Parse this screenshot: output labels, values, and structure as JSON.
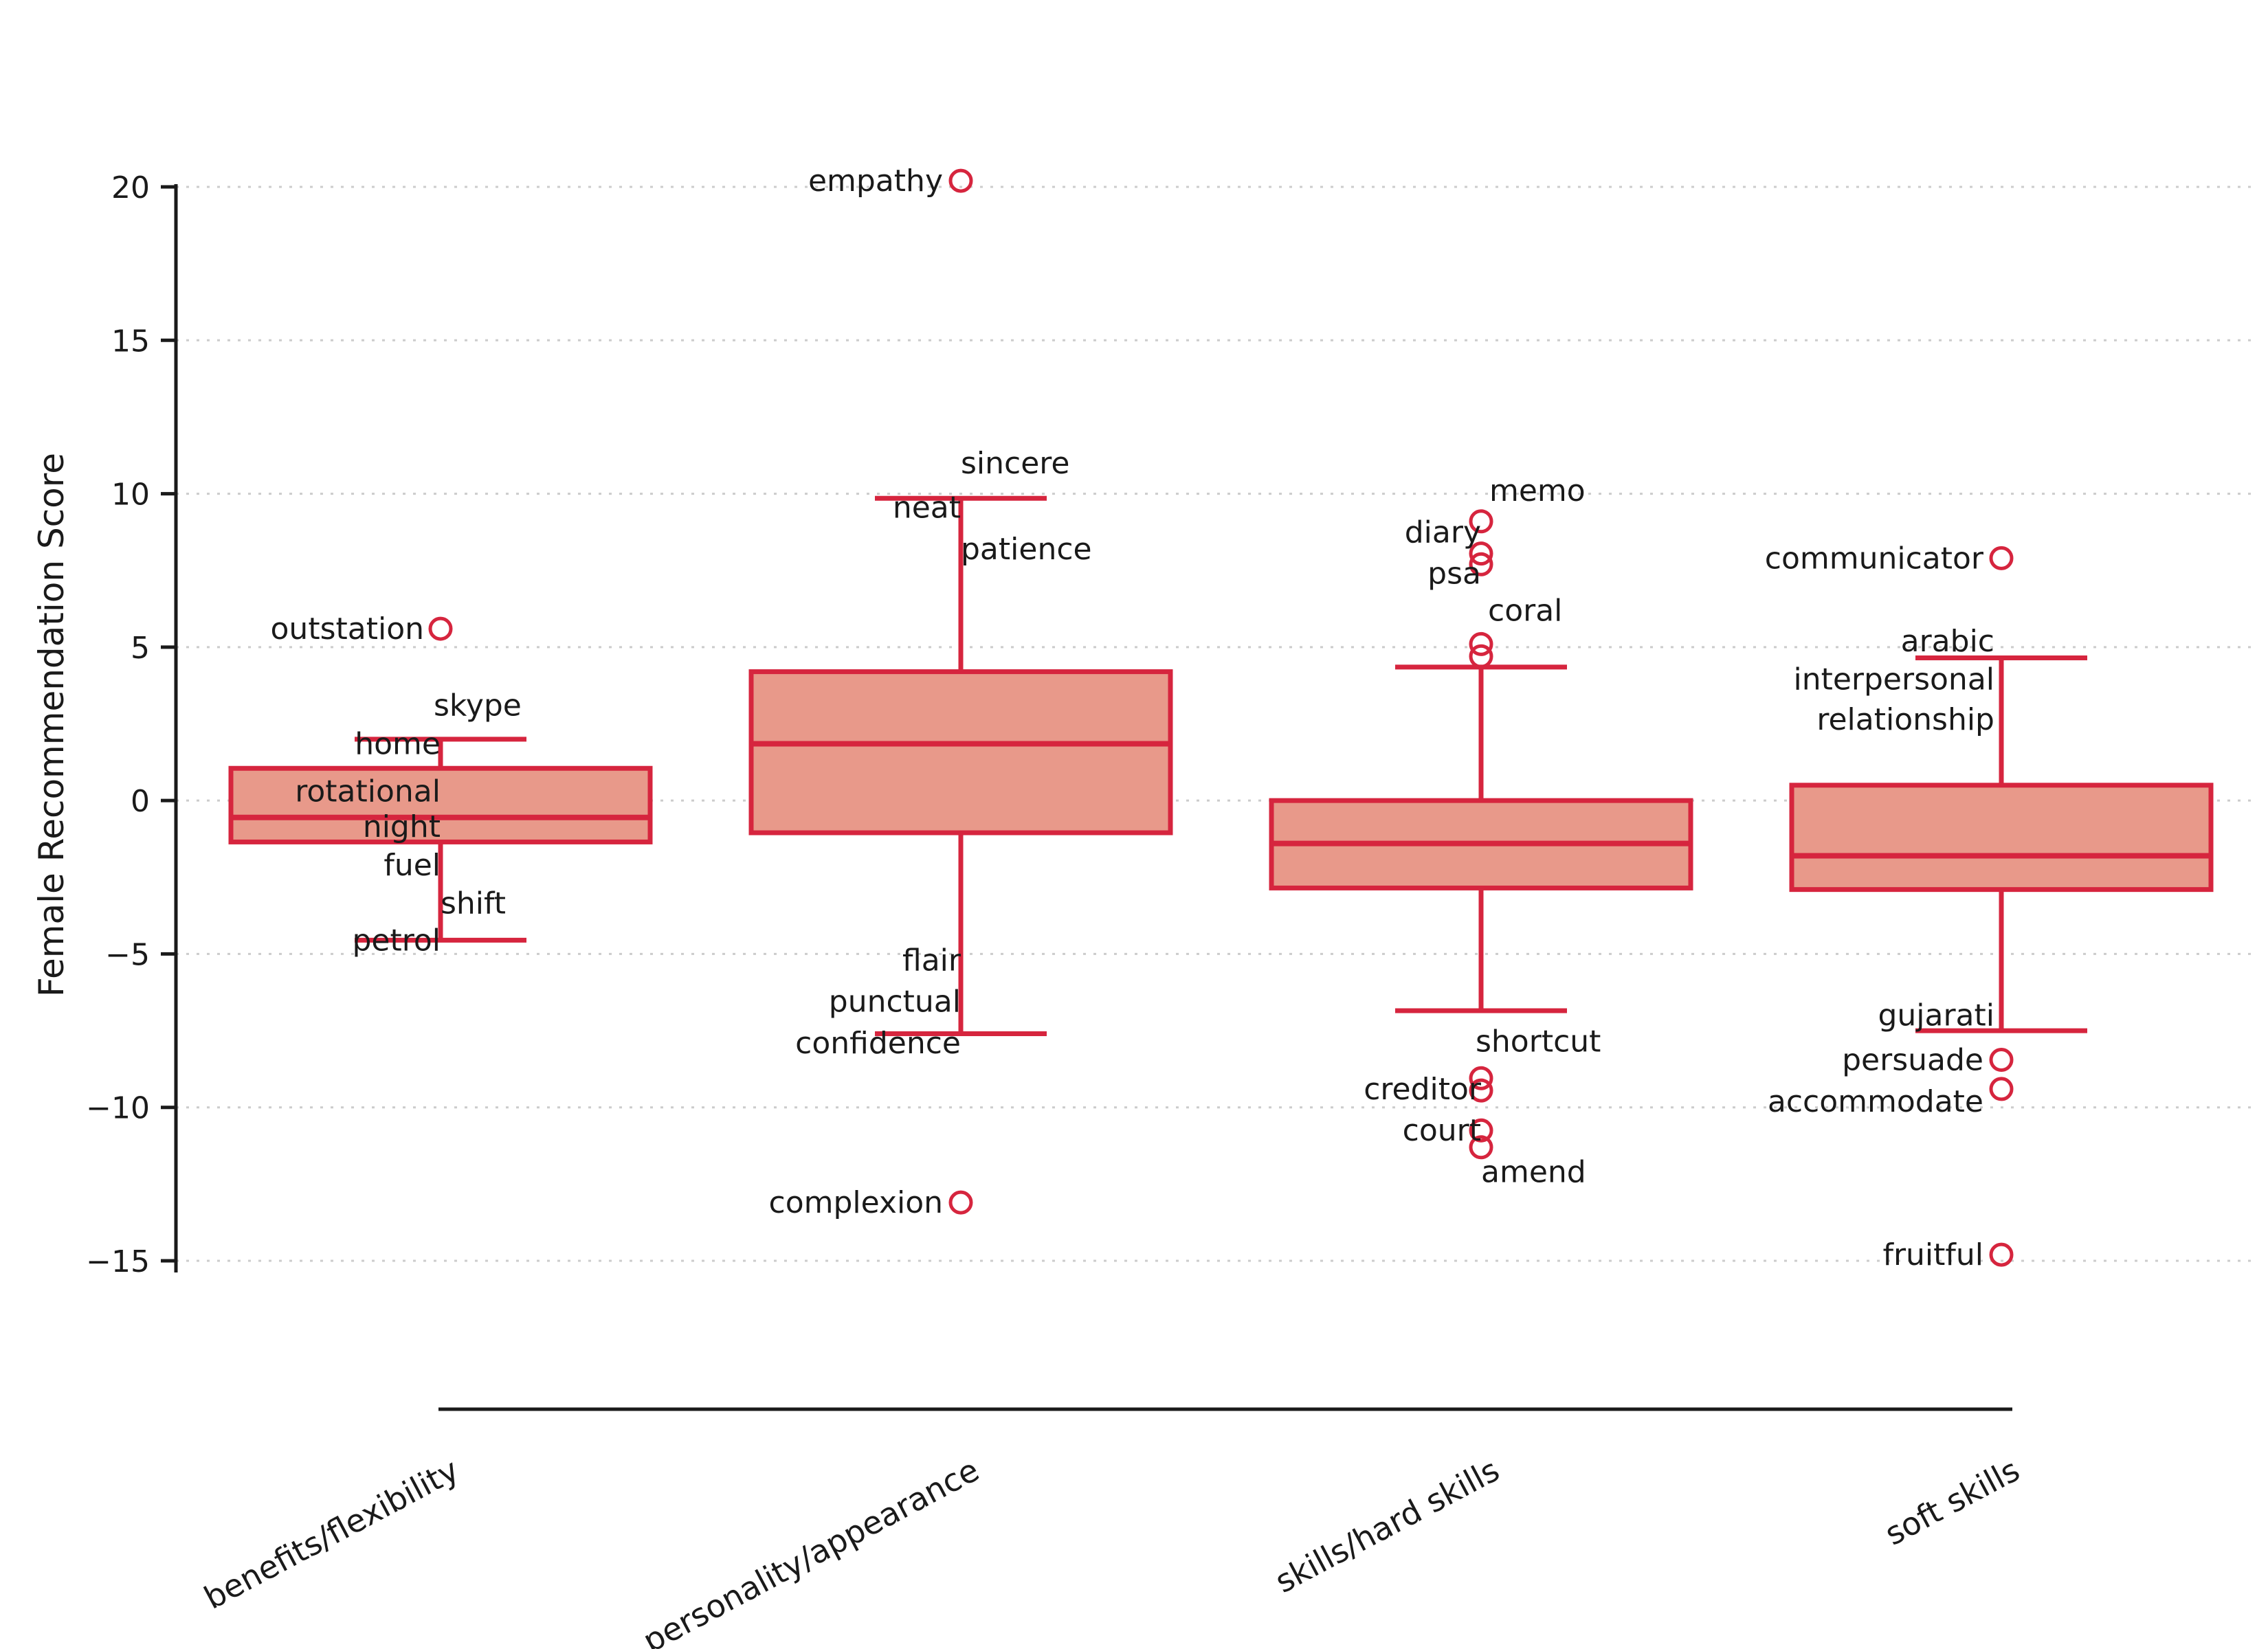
{
  "figure": {
    "background": "#ffffff"
  },
  "chart_data": {
    "type": "box",
    "title": "",
    "xlabel": "",
    "ylabel": "Female Recommendation Score",
    "ylim": [
      -17.5,
      21.5
    ],
    "yticks": [
      20,
      15,
      10,
      5,
      0,
      -5,
      -10,
      -15
    ],
    "grid": "horizontal-dotted",
    "legend": "none",
    "categories": [
      "benefits/flexibility",
      "personality/appearance",
      "skills/hard skills",
      "soft skills"
    ],
    "boxes": [
      {
        "category": "benefits/flexibility",
        "whislo": -4.55,
        "q1": -1.35,
        "med": -0.55,
        "q3": 1.05,
        "whishi": 2.0,
        "outliers": [
          5.6
        ]
      },
      {
        "category": "personality/appearance",
        "whislo": -7.6,
        "q1": -1.05,
        "med": 1.85,
        "q3": 4.2,
        "whishi": 9.85,
        "outliers": [
          20.2,
          -13.1
        ]
      },
      {
        "category": "skills/hard skills",
        "whislo": -6.85,
        "q1": -2.85,
        "med": -1.4,
        "q3": 0.0,
        "whishi": 4.35,
        "outliers": [
          9.1,
          8.05,
          7.7,
          5.1,
          4.7,
          -9.05,
          -9.45,
          -10.75,
          -11.3
        ]
      },
      {
        "category": "soft skills",
        "whislo": -7.5,
        "q1": -2.9,
        "med": -1.8,
        "q3": 0.5,
        "whishi": 4.65,
        "outliers": [
          7.9,
          -8.45,
          -9.4,
          -14.8
        ]
      }
    ],
    "annotations": [
      {
        "cat": 0,
        "label": "outstation",
        "value": 5.6,
        "anchor": "end",
        "dx": -24
      },
      {
        "cat": 0,
        "label": "skype",
        "value": 3.1,
        "anchor": "start",
        "dx": -10
      },
      {
        "cat": 0,
        "label": "home",
        "value": 1.85,
        "anchor": "end",
        "dx": 0
      },
      {
        "cat": 0,
        "label": "rotational",
        "value": 0.3,
        "anchor": "end",
        "dx": 0
      },
      {
        "cat": 0,
        "label": "night",
        "value": -0.85,
        "anchor": "end",
        "dx": 0
      },
      {
        "cat": 0,
        "label": "fuel",
        "value": -2.1,
        "anchor": "end",
        "dx": 0
      },
      {
        "cat": 0,
        "label": "shift",
        "value": -3.35,
        "anchor": "start",
        "dx": 0
      },
      {
        "cat": 0,
        "label": "petrol",
        "value": -4.55,
        "anchor": "end",
        "dx": 0
      },
      {
        "cat": 1,
        "label": "empathy",
        "value": 20.2,
        "anchor": "end",
        "dx": -26
      },
      {
        "cat": 1,
        "label": "sincere",
        "value": 11.0,
        "anchor": "start",
        "dx": 0
      },
      {
        "cat": 1,
        "label": "neat",
        "value": 9.55,
        "anchor": "end",
        "dx": 0
      },
      {
        "cat": 1,
        "label": "patience",
        "value": 8.2,
        "anchor": "start",
        "dx": 0
      },
      {
        "cat": 1,
        "label": "flair",
        "value": -5.2,
        "anchor": "end",
        "dx": 0
      },
      {
        "cat": 1,
        "label": "punctual",
        "value": -6.55,
        "anchor": "end",
        "dx": 0
      },
      {
        "cat": 1,
        "label": "confidence",
        "value": -7.9,
        "anchor": "end",
        "dx": 0
      },
      {
        "cat": 1,
        "label": "complexion",
        "value": -13.1,
        "anchor": "end",
        "dx": -26
      },
      {
        "cat": 2,
        "label": "memo",
        "value": 10.1,
        "anchor": "start",
        "dx": 12
      },
      {
        "cat": 2,
        "label": "diary",
        "value": 8.75,
        "anchor": "end",
        "dx": 0
      },
      {
        "cat": 2,
        "label": "psa",
        "value": 7.4,
        "anchor": "end",
        "dx": 0
      },
      {
        "cat": 2,
        "label": "coral",
        "value": 6.2,
        "anchor": "start",
        "dx": 10
      },
      {
        "cat": 2,
        "label": "shortcut",
        "value": -7.85,
        "anchor": "start",
        "dx": -8
      },
      {
        "cat": 2,
        "label": "creditor",
        "value": -9.4,
        "anchor": "end",
        "dx": 0
      },
      {
        "cat": 2,
        "label": "court",
        "value": -10.75,
        "anchor": "end",
        "dx": 0
      },
      {
        "cat": 2,
        "label": "amend",
        "value": -12.1,
        "anchor": "start",
        "dx": 0
      },
      {
        "cat": 3,
        "label": "communicator",
        "value": 7.9,
        "anchor": "end",
        "dx": -26
      },
      {
        "cat": 3,
        "label": "arabic",
        "value": 5.2,
        "anchor": "end",
        "dx": -10
      },
      {
        "cat": 3,
        "label": "interpersonal",
        "value": 3.95,
        "anchor": "end",
        "dx": -10
      },
      {
        "cat": 3,
        "label": "relationship",
        "value": 2.65,
        "anchor": "end",
        "dx": -10
      },
      {
        "cat": 3,
        "label": "gujarati",
        "value": -7.0,
        "anchor": "end",
        "dx": -10
      },
      {
        "cat": 3,
        "label": "persuade",
        "value": -8.45,
        "anchor": "end",
        "dx": -26
      },
      {
        "cat": 3,
        "label": "accommodate",
        "value": -9.8,
        "anchor": "end",
        "dx": -26
      },
      {
        "cat": 3,
        "label": "fruitful",
        "value": -14.8,
        "anchor": "end",
        "dx": -26
      }
    ],
    "colors": {
      "box_edge": "#d6253e",
      "box_fill": "#e8998a",
      "grid": "#cccccc",
      "axis": "#1a1a1a",
      "text": "#1a1a1a",
      "background": "#ffffff"
    }
  }
}
